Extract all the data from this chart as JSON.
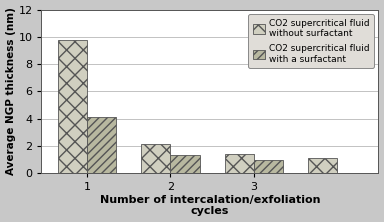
{
  "series1_values": [
    9.8,
    2.15,
    1.4,
    1.1
  ],
  "series2_values": [
    4.15,
    1.35,
    0.95
  ],
  "bar_width": 0.35,
  "group_positions": [
    1,
    2,
    3,
    4
  ],
  "ylim": [
    0,
    12
  ],
  "yticks": [
    0,
    2,
    4,
    6,
    8,
    10,
    12
  ],
  "xtick_positions": [
    1,
    2,
    3
  ],
  "xtick_labels": [
    "1",
    "2",
    "3"
  ],
  "xlim": [
    0.45,
    4.5
  ],
  "xlabel_line1": "Number of intercalation/exfoliation",
  "xlabel_line2": "cycles",
  "ylabel": "Average NGP thickness (nm)",
  "legend1": "CO2 supercritical fluid\nwithout surfactant",
  "legend2": "CO2 supercritical fluid\nwith a surfactant",
  "color1": "#d0cfc0",
  "color2": "#b8b8a0",
  "fig_bg": "#c8c8c8",
  "plot_bg": "#ffffff"
}
